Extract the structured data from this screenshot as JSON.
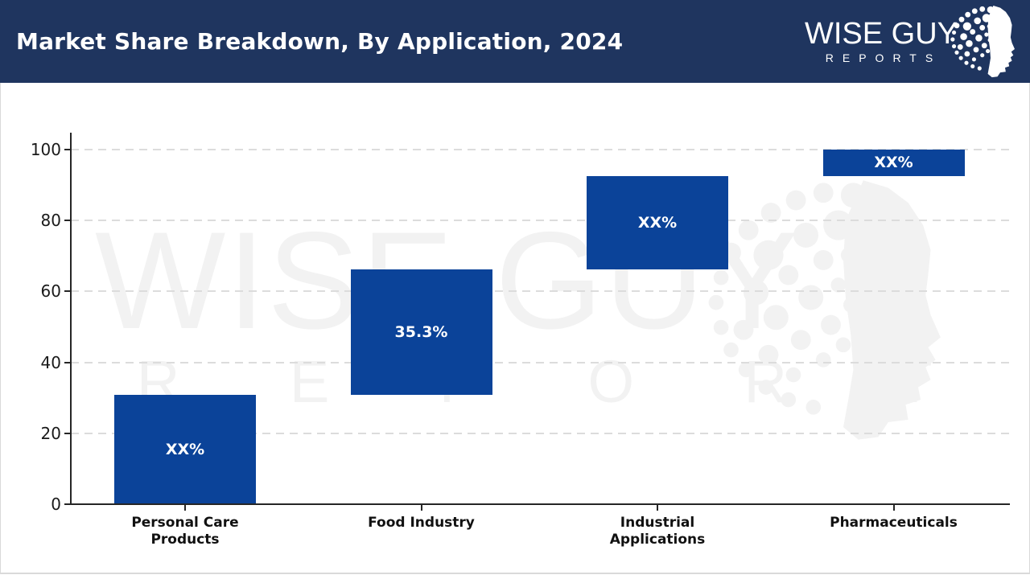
{
  "header": {
    "title": "Market Share Breakdown, By Application, 2024",
    "bg_color": "#1F355F",
    "logo": {
      "line1": "WISE GUY",
      "line2": "REPORTS"
    }
  },
  "watermark": {
    "line1": "WISE GUY",
    "line2": "R E P O R T S"
  },
  "chart_data": {
    "type": "bar",
    "subtype": "stacked-waterfall",
    "title": "Market Share Breakdown, By Application, 2024",
    "categories": [
      "Personal Care\nProducts",
      "Food Industry",
      "Industrial\nApplications",
      "Pharmaceuticals"
    ],
    "segments": [
      {
        "category": "Personal Care Products",
        "start": 0,
        "end": 30.9,
        "value_label": "XX%"
      },
      {
        "category": "Food Industry",
        "start": 30.9,
        "end": 66.2,
        "value_label": "35.3%"
      },
      {
        "category": "Industrial Applications",
        "start": 66.2,
        "end": 92.6,
        "value_label": "XX%"
      },
      {
        "category": "Pharmaceuticals",
        "start": 92.6,
        "end": 100,
        "value_label": "XX%"
      }
    ],
    "y_ticks": [
      0,
      20,
      40,
      60,
      80,
      100
    ],
    "ylim": [
      0,
      104.8
    ],
    "xlabel": "",
    "ylabel": "",
    "grid": "dashed-horizontal",
    "legend": "none",
    "bar_color": "#0B4399",
    "grid_color": "#dcdcdc",
    "axis_color": "#262626"
  }
}
